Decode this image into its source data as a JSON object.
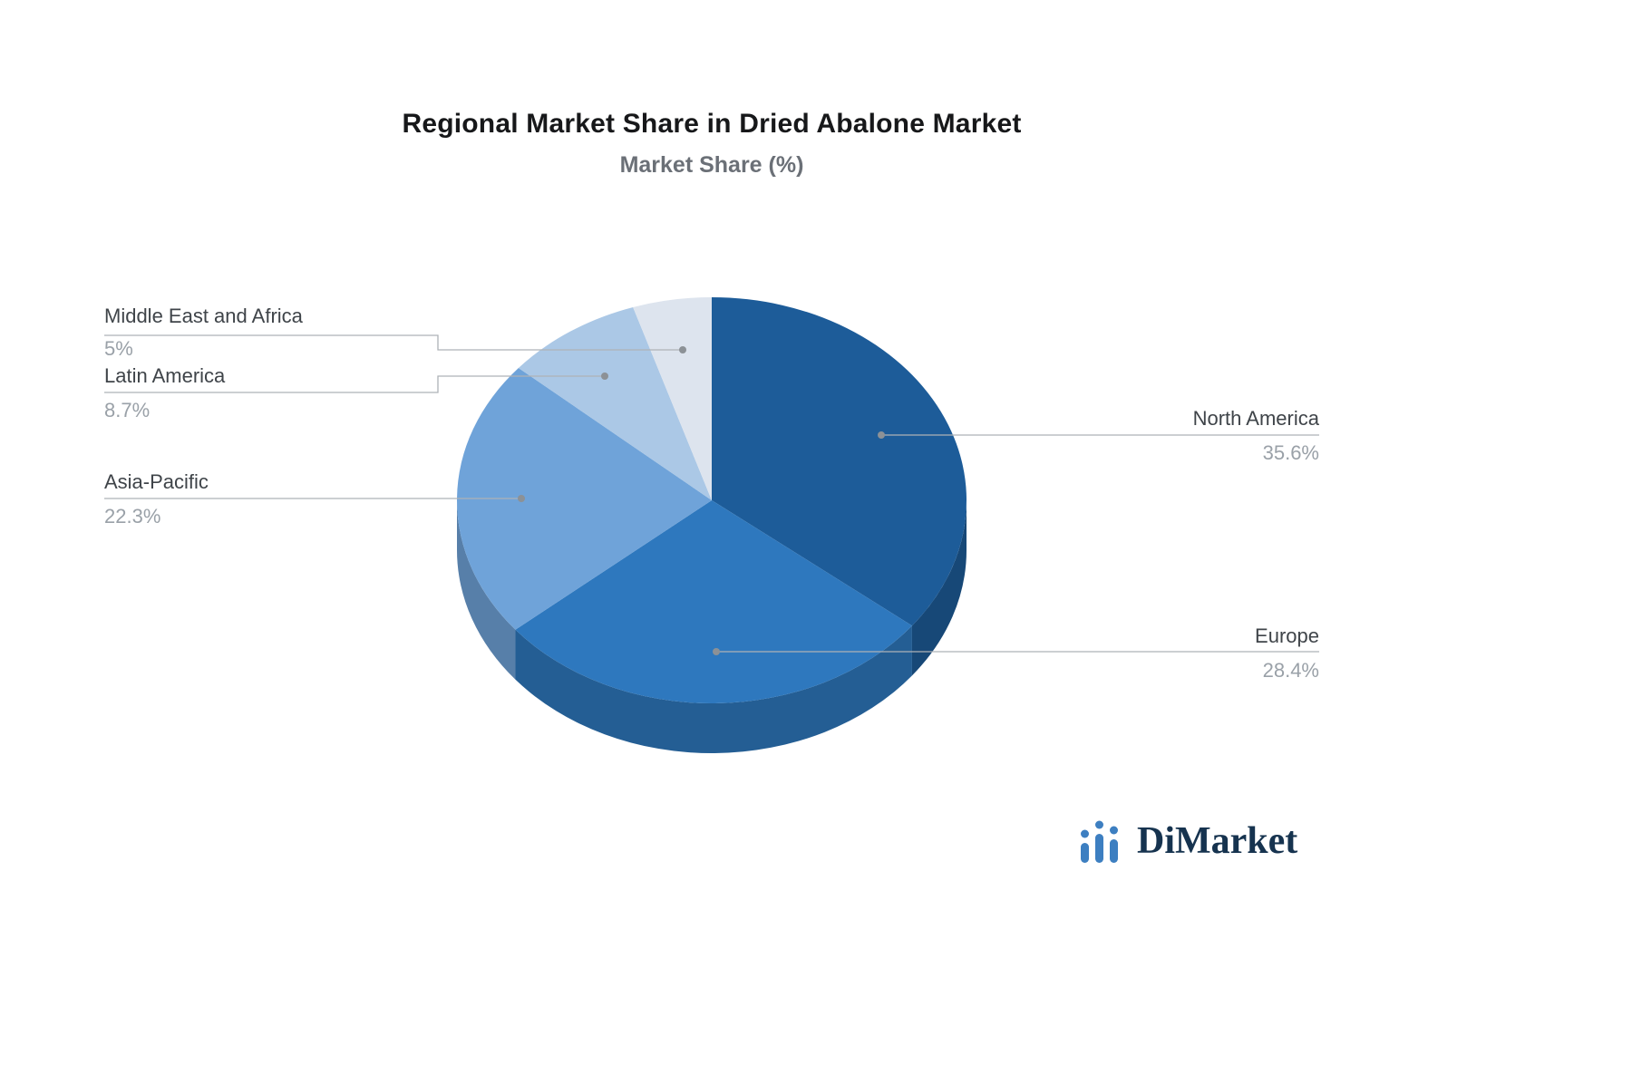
{
  "title": "Regional Market Share in Dried Abalone Market",
  "subtitle": "Market Share (%)",
  "brand": {
    "name": "DiMarket",
    "accent_color": "#3d7fc1",
    "text_color": "#16334f"
  },
  "chart_data": {
    "type": "pie",
    "title": "Regional Market Share in Dried Abalone Market",
    "subtitle": "Market Share (%)",
    "unit": "%",
    "style": "3d-pie",
    "legend_position": "none",
    "labels_shown": true,
    "slices": [
      {
        "name": "North America",
        "value": 35.6,
        "display": "35.6%",
        "color": "#1d5c99",
        "label_side": "right"
      },
      {
        "name": "Europe",
        "value": 28.4,
        "display": "28.4%",
        "color": "#2e78be",
        "label_side": "right"
      },
      {
        "name": "Asia-Pacific",
        "value": 22.3,
        "display": "22.3%",
        "color": "#6fa3d9",
        "label_side": "left"
      },
      {
        "name": "Latin America",
        "value": 8.7,
        "display": "8.7%",
        "color": "#abc8e6",
        "label_side": "left"
      },
      {
        "name": "Middle East and Africa",
        "value": 5,
        "display": "5%",
        "color": "#dde4ee",
        "label_side": "left"
      }
    ]
  }
}
